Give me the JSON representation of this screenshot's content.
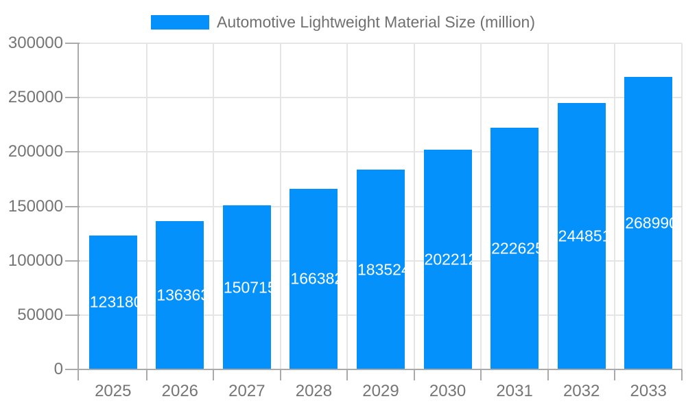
{
  "chart_data": {
    "type": "bar",
    "title": "Automotive Lightweight Material Size (million)",
    "categories": [
      "2025",
      "2026",
      "2027",
      "2028",
      "2029",
      "2030",
      "2031",
      "2032",
      "2033"
    ],
    "series": [
      {
        "name": "Automotive Lightweight Material Size (million)",
        "values": [
          123180,
          136363,
          150715,
          166382,
          183524,
          202212,
          222625,
          244851,
          268990
        ]
      }
    ],
    "value_labels_visible": true,
    "xlabel": "",
    "ylabel": "",
    "ylim": [
      0,
      300000
    ],
    "y_ticks": [
      0,
      50000,
      100000,
      150000,
      200000,
      250000,
      300000
    ],
    "y_tick_labels": [
      "0",
      "50000",
      "100000",
      "150000",
      "200000",
      "250000",
      "300000"
    ],
    "grid": true,
    "legend_position": "top",
    "colors": {
      "bar": "#0591fb",
      "axis_line": "#aaaaaa",
      "grid_line": "#e5e5e5",
      "tick_label": "#757575",
      "legend_text": "#707070",
      "value_label": "#ffffff",
      "background": "#ffffff"
    }
  }
}
